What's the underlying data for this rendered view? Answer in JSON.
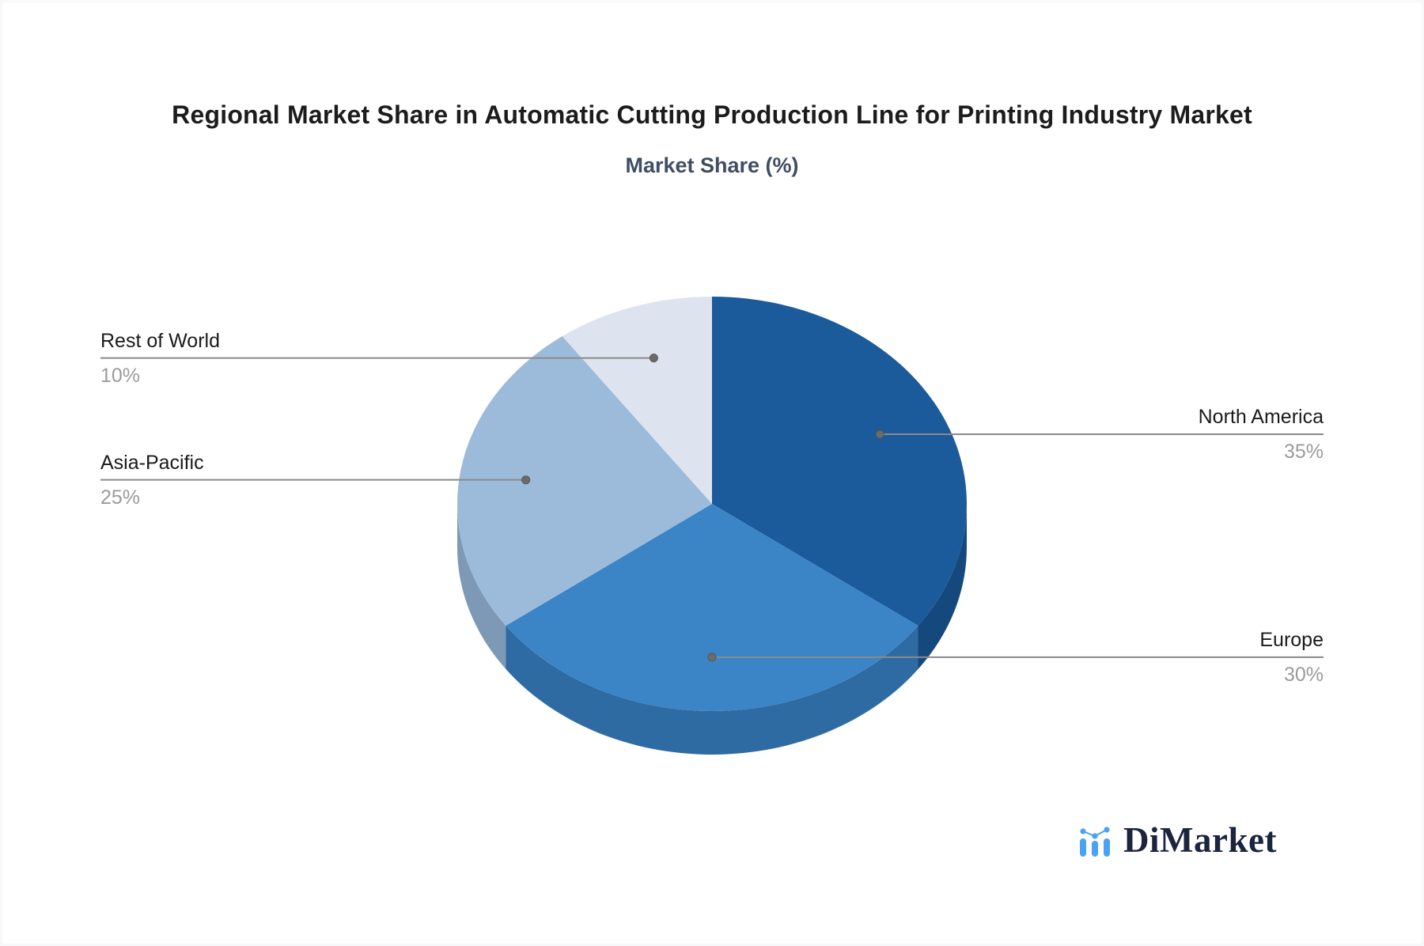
{
  "page": {
    "background_color": "#ffffff",
    "frame_color": "#f7f8f9"
  },
  "chart_data": {
    "type": "pie",
    "title": "Regional Market Share in Automatic Cutting Production Line for Printing Industry Market",
    "subtitle": "Market Share (%)",
    "unit": "%",
    "style": "3d-pie",
    "start_angle": "12-oclock",
    "direction": "clockwise",
    "legend_position": "callout-labels",
    "slices": [
      {
        "name": "North America",
        "value": 35,
        "value_label": "35%",
        "color": "#1b5a9b",
        "side_color": "#15487d",
        "label_side": "right"
      },
      {
        "name": "Europe",
        "value": 30,
        "value_label": "30%",
        "color": "#3b85c7",
        "side_color": "#2e6ba3",
        "label_side": "right"
      },
      {
        "name": "Asia-Pacific",
        "value": 25,
        "value_label": "25%",
        "color": "#9cbbdb",
        "side_color": "#7e99b6",
        "label_side": "left"
      },
      {
        "name": "Rest of World",
        "value": 10,
        "value_label": "10%",
        "color": "#dde4ef",
        "side_color": "#b9c7d8",
        "label_side": "left"
      }
    ],
    "leader_line_color": "#8a8a8a",
    "leader_dot_color": "#6b6b6b",
    "label_color": "#1b1b1b",
    "value_color": "#9b9b9b",
    "title_color": "#1c1c1c",
    "subtitle_color": "#3f4d63"
  },
  "logo": {
    "text": "DiMarket",
    "icon": "bar-chart-logo-icon",
    "icon_color": "#4aa2f5",
    "text_color": "#1b2540"
  }
}
